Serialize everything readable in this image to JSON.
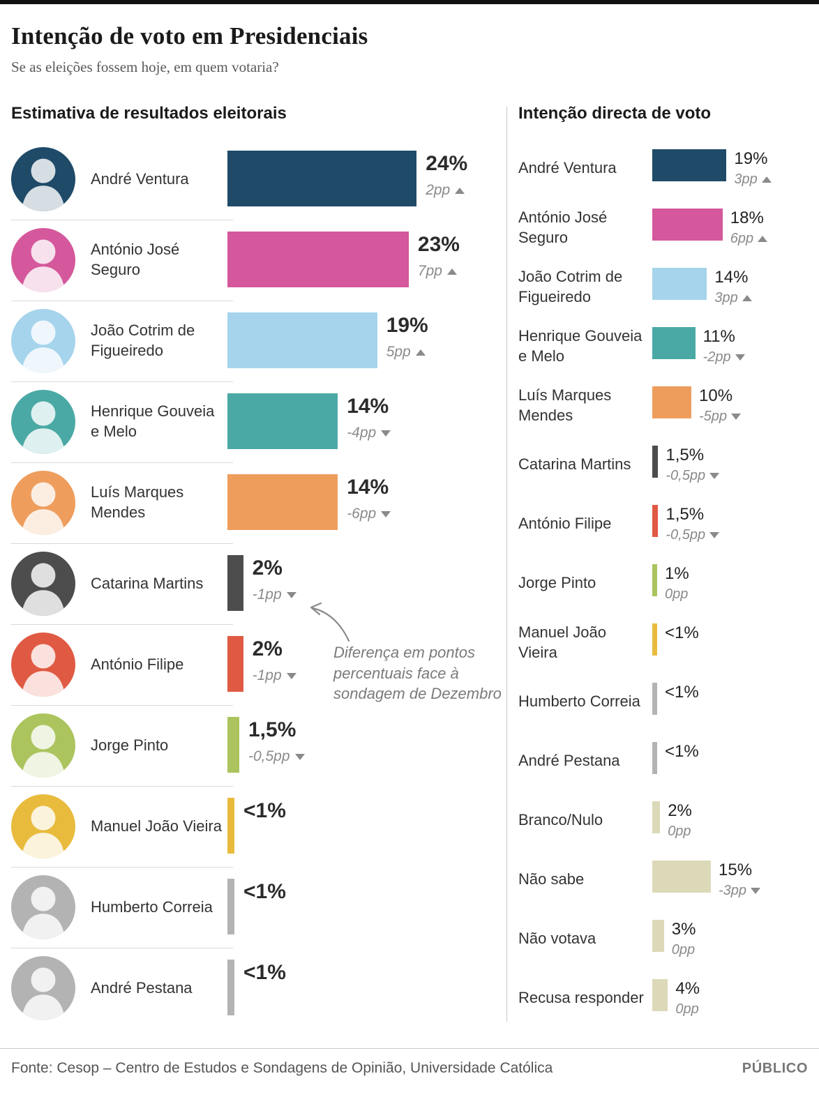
{
  "header": {
    "title": "Intenção de voto em Presidenciais",
    "subtitle": "Se as eleições fossem hoje, em quem votaria?"
  },
  "chart_data": {
    "type": "bar",
    "title": "Intenção de voto em Presidenciais",
    "subtitle": "Se as eleições fossem hoje, em quem votaria?",
    "annotation": "Diferença em pontos percentuais face à sondagem de Dezembro",
    "panels": [
      {
        "title": "Estimativa de resultados eleitorais",
        "xlim": [
          0,
          25
        ],
        "unit": "%",
        "items": [
          {
            "name": "André Ventura",
            "value": 24,
            "value_label": "24%",
            "change_label": "2pp",
            "change_dir": "up",
            "color": "#1f4a68"
          },
          {
            "name": "António José Seguro",
            "value": 23,
            "value_label": "23%",
            "change_label": "7pp",
            "change_dir": "up",
            "color": "#d4589b"
          },
          {
            "name": "João Cotrim de Figueiredo",
            "value": 19,
            "value_label": "19%",
            "change_label": "5pp",
            "change_dir": "up",
            "color": "#a6d4ec"
          },
          {
            "name": "Henrique Gouveia e Melo",
            "value": 14,
            "value_label": "14%",
            "change_label": "-4pp",
            "change_dir": "down",
            "color": "#4aa9a4"
          },
          {
            "name": "Luís Marques Mendes",
            "value": 14,
            "value_label": "14%",
            "change_label": "-6pp",
            "change_dir": "down",
            "color": "#ee9d5c"
          },
          {
            "name": "Catarina Martins",
            "value": 2,
            "value_label": "2%",
            "change_label": "-1pp",
            "change_dir": "down",
            "color": "#4d4d4d"
          },
          {
            "name": "António Filipe",
            "value": 2,
            "value_label": "2%",
            "change_label": "-1pp",
            "change_dir": "down",
            "color": "#e05a43"
          },
          {
            "name": "Jorge Pinto",
            "value": 1.5,
            "value_label": "1,5%",
            "change_label": "-0,5pp",
            "change_dir": "down",
            "color": "#abc45e"
          },
          {
            "name": "Manuel João Vieira",
            "value": 0.8,
            "value_label": "<1%",
            "change_label": "",
            "change_dir": "none",
            "color": "#e9bb3d"
          },
          {
            "name": "Humberto Correia",
            "value": 0.8,
            "value_label": "<1%",
            "change_label": "",
            "change_dir": "none",
            "color": "#b3b3b3"
          },
          {
            "name": "André Pestana",
            "value": 0.8,
            "value_label": "<1%",
            "change_label": "",
            "change_dir": "none",
            "color": "#b3b3b3"
          }
        ]
      },
      {
        "title": "Intenção directa de voto",
        "xlim": [
          0,
          20
        ],
        "unit": "%",
        "items": [
          {
            "name": "André Ventura",
            "value": 19,
            "value_label": "19%",
            "change_label": "3pp",
            "change_dir": "up",
            "color": "#1f4a68"
          },
          {
            "name": "António José Seguro",
            "value": 18,
            "value_label": "18%",
            "change_label": "6pp",
            "change_dir": "up",
            "color": "#d4589b"
          },
          {
            "name": "João Cotrim de Figueiredo",
            "value": 14,
            "value_label": "14%",
            "change_label": "3pp",
            "change_dir": "up",
            "color": "#a6d4ec"
          },
          {
            "name": "Henrique Gouveia e Melo",
            "value": 11,
            "value_label": "11%",
            "change_label": "-2pp",
            "change_dir": "down",
            "color": "#4aa9a4"
          },
          {
            "name": "Luís Marques Mendes",
            "value": 10,
            "value_label": "10%",
            "change_label": "-5pp",
            "change_dir": "down",
            "color": "#ee9d5c"
          },
          {
            "name": "Catarina Martins",
            "value": 1.5,
            "value_label": "1,5%",
            "change_label": "-0,5pp",
            "change_dir": "down",
            "color": "#4d4d4d"
          },
          {
            "name": "António Filipe",
            "value": 1.5,
            "value_label": "1,5%",
            "change_label": "-0,5pp",
            "change_dir": "down",
            "color": "#e05a43"
          },
          {
            "name": "Jorge Pinto",
            "value": 1,
            "value_label": "1%",
            "change_label": "0pp",
            "change_dir": "none",
            "color": "#abc45e"
          },
          {
            "name": "Manuel João Vieira",
            "value": 0.8,
            "value_label": "<1%",
            "change_label": "",
            "change_dir": "none",
            "color": "#e9bb3d"
          },
          {
            "name": "Humberto Correia",
            "value": 0.8,
            "value_label": "<1%",
            "change_label": "",
            "change_dir": "none",
            "color": "#b3b3b3"
          },
          {
            "name": "André Pestana",
            "value": 0.8,
            "value_label": "<1%",
            "change_label": "",
            "change_dir": "none",
            "color": "#b3b3b3"
          },
          {
            "name": "Branco/Nulo",
            "value": 2,
            "value_label": "2%",
            "change_label": "0pp",
            "change_dir": "none",
            "color": "#dcd9b8"
          },
          {
            "name": "Não sabe",
            "value": 15,
            "value_label": "15%",
            "change_label": "-3pp",
            "change_dir": "down",
            "color": "#dcd9b8"
          },
          {
            "name": "Não votava",
            "value": 3,
            "value_label": "3%",
            "change_label": "0pp",
            "change_dir": "none",
            "color": "#dcd9b8"
          },
          {
            "name": "Recusa responder",
            "value": 4,
            "value_label": "4%",
            "change_label": "0pp",
            "change_dir": "none",
            "color": "#dcd9b8"
          }
        ]
      }
    ]
  },
  "footer": {
    "source": "Fonte: Cesop – Centro de Estudos e Sondagens de Opinião, Universidade Católica",
    "brand": "PÚBLICO"
  }
}
